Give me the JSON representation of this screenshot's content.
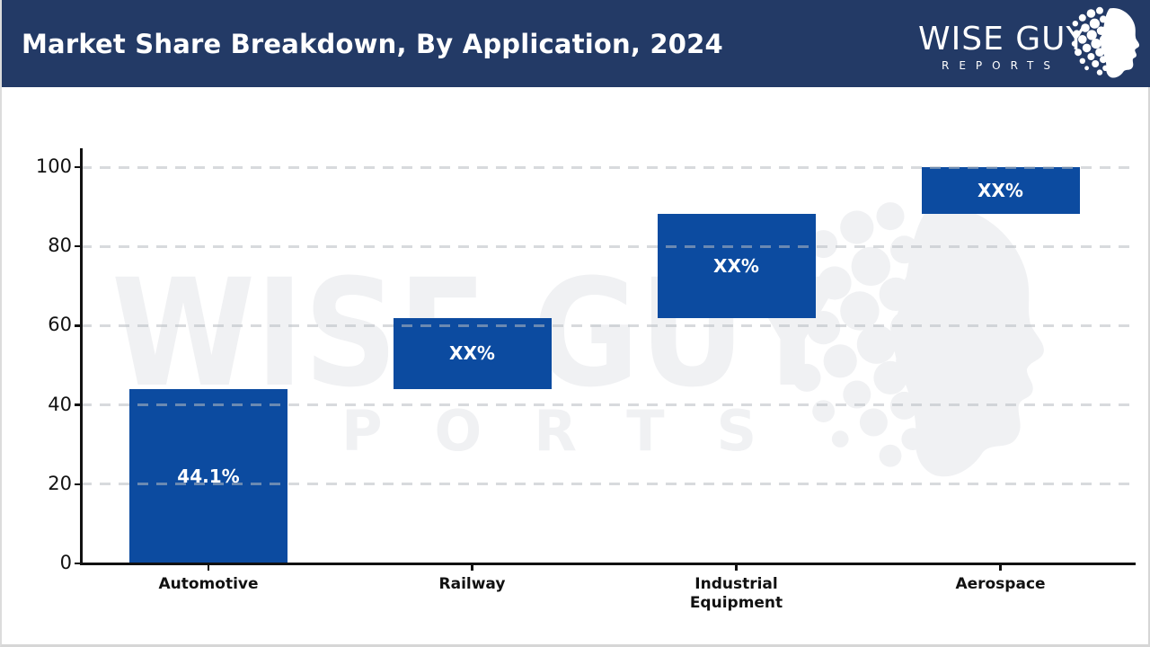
{
  "header": {
    "title": "Market Share Breakdown, By Application, 2024",
    "logo": {
      "brand": "WISE GUY",
      "brand_sub": "REPORTS"
    }
  },
  "watermark": {
    "line1": "WISE GUY",
    "line2": "REPORTS"
  },
  "chart_data": {
    "type": "bar",
    "variant": "waterfall",
    "title": "Market Share Breakdown, By Application, 2024",
    "categories": [
      "Automotive",
      "Railway",
      "Industrial\nEquipment",
      "Aerospace"
    ],
    "series": [
      {
        "name": "Market share (%)",
        "segments": [
          {
            "category": "Automotive",
            "start": 0,
            "end": 44.1,
            "label": "44.1%"
          },
          {
            "category": "Railway",
            "start": 44.1,
            "end": 61.8,
            "label": "XX%"
          },
          {
            "category": "Industrial Equipment",
            "start": 61.8,
            "end": 88.2,
            "label": "XX%"
          },
          {
            "category": "Aerospace",
            "start": 88.2,
            "end": 100,
            "label": "XX%"
          }
        ]
      }
    ],
    "xlabel": "",
    "ylabel": "",
    "ylim": [
      0,
      100
    ],
    "yticks": [
      0,
      20,
      40,
      60,
      80,
      100
    ],
    "grid": "horizontal-dashed",
    "legend": "none",
    "bar_color": "#0c4ba0",
    "bar_label_color": "#ffffff"
  },
  "colors": {
    "header_bg": "#233a66",
    "bar": "#0c4ba0",
    "axis": "#111111",
    "grid": "#d8dadc",
    "watermark": "#f0f1f3",
    "title_text": "#ffffff"
  }
}
